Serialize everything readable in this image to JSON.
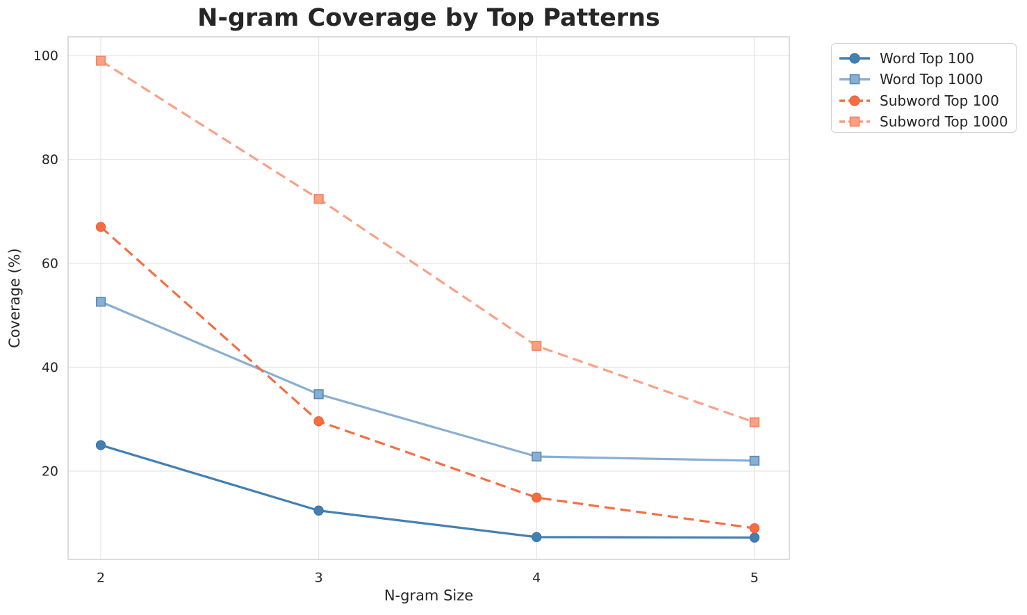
{
  "figure": {
    "title": "N-gram Coverage by Top Patterns"
  },
  "chart_data": {
    "type": "line",
    "title": "N-gram Coverage by Top Patterns",
    "xlabel": "N-gram Size",
    "ylabel": "Coverage (%)",
    "x": [
      2,
      3,
      4,
      5
    ],
    "xtick_labels": [
      "2",
      "3",
      "4",
      "5"
    ],
    "yticks": [
      20,
      40,
      60,
      80,
      100
    ],
    "ytick_labels": [
      "20",
      "40",
      "60",
      "80",
      "100"
    ],
    "xlim": [
      1.85,
      5.16
    ],
    "ylim": [
      3,
      103.6
    ],
    "grid": true,
    "legend_position": "upper right, outside axes",
    "series": [
      {
        "name": "Word Top 100",
        "values": [
          25.0,
          12.4,
          7.3,
          7.2
        ],
        "color": "#4380b2",
        "edge_color": "#3b74a4",
        "line_style": "solid",
        "marker": "circle"
      },
      {
        "name": "Word Top 1000",
        "values": [
          52.6,
          34.8,
          22.8,
          22.0
        ],
        "color": "#89afd3",
        "edge_color": "#5689ba",
        "line_style": "solid",
        "marker": "square"
      },
      {
        "name": "Subword Top 100",
        "values": [
          67.0,
          29.6,
          14.9,
          9.0
        ],
        "color": "#f56e43",
        "edge_color": "#ef5f33",
        "line_style": "dashed",
        "marker": "circle"
      },
      {
        "name": "Subword Top 1000",
        "values": [
          99.0,
          72.4,
          44.1,
          29.4
        ],
        "color": "#fba085",
        "edge_color": "#f58159",
        "line_style": "dashed",
        "marker": "square"
      }
    ],
    "style": {
      "background": "#ffffff",
      "grid_color": "#e7e7e7",
      "spine_color": "#cdcdcd",
      "text_color": "#262626",
      "line_width": 3.2,
      "dash_pattern": "15 8"
    }
  }
}
